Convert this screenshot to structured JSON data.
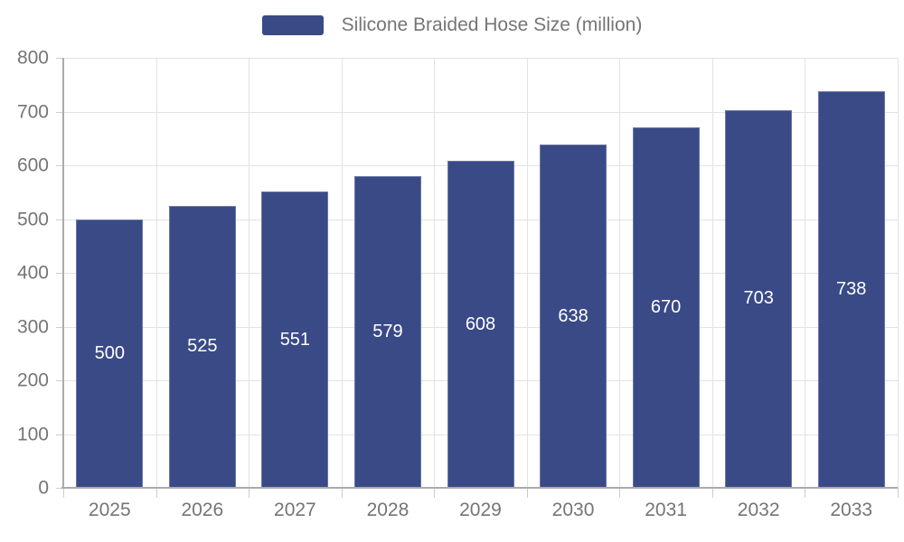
{
  "chart_data": {
    "type": "bar",
    "title": "Silicone Braided Hose Size (million)",
    "categories": [
      "2025",
      "2026",
      "2027",
      "2028",
      "2029",
      "2030",
      "2031",
      "2032",
      "2033"
    ],
    "values": [
      500,
      525,
      551,
      579,
      608,
      638,
      670,
      703,
      738
    ],
    "xlabel": "",
    "ylabel": "",
    "ylim": [
      0,
      800
    ],
    "yticks": [
      0,
      100,
      200,
      300,
      400,
      500,
      600,
      700,
      800
    ],
    "grid": true,
    "legend_position": "top-center",
    "bar_color": "#3A4A87",
    "bar_label_color": "#FFFFFF",
    "axis_text_color": "#757575",
    "gridline_color": "#E2E2E2",
    "axis_line_color": "#ABABAB"
  },
  "legend": {
    "label": "Silicone Braided Hose Size (million)"
  }
}
